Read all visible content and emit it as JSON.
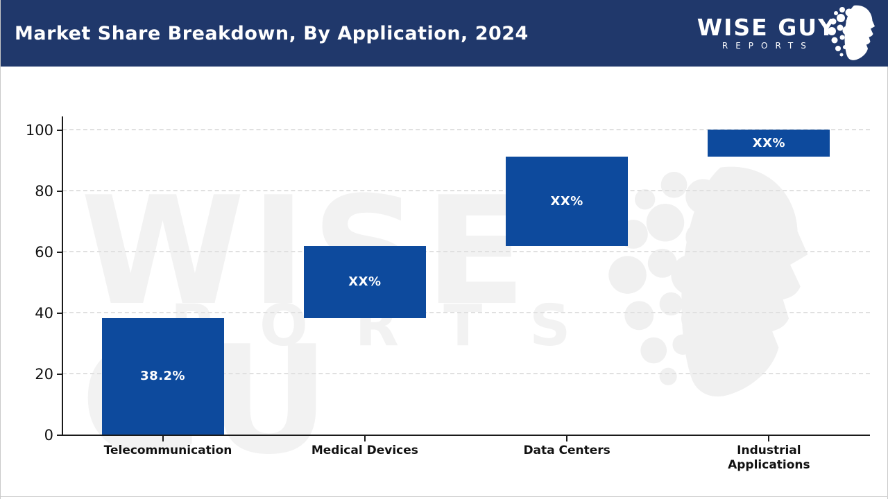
{
  "header": {
    "title": "Market Share Breakdown, By Application, 2024",
    "logo": {
      "line1": "WISE GUY",
      "line2": "REPORTS"
    }
  },
  "watermark": {
    "line1": "WISE GU",
    "line2": "PORTS"
  },
  "colors": {
    "header_bg": "#20386b",
    "bar": "#0d4a9d",
    "bar_label": "#ffffff",
    "axis": "#1a1a1a",
    "grid": "#e0e0e0",
    "watermark": "#f2f2f2"
  },
  "chart_data": {
    "type": "bar",
    "variant": "waterfall",
    "title": "Market Share Breakdown, By Application, 2024",
    "xlabel": "",
    "ylabel": "",
    "ylim": [
      0,
      100
    ],
    "yticks": [
      0,
      20,
      40,
      60,
      80,
      100
    ],
    "grid": "horizontal-dashed",
    "legend": "none",
    "categories": [
      "Telecommunication",
      "Medical Devices",
      "Data Centers",
      "Industrial Applications"
    ],
    "segments": [
      {
        "category": "Telecommunication",
        "start": 0,
        "end": 38.2,
        "label": "38.2%"
      },
      {
        "category": "Medical Devices",
        "start": 38.2,
        "end": 61.8,
        "label": "XX%"
      },
      {
        "category": "Data Centers",
        "start": 61.8,
        "end": 91.2,
        "label": "XX%"
      },
      {
        "category": "Industrial Applications",
        "start": 91.2,
        "end": 100,
        "label": "XX%"
      }
    ]
  }
}
